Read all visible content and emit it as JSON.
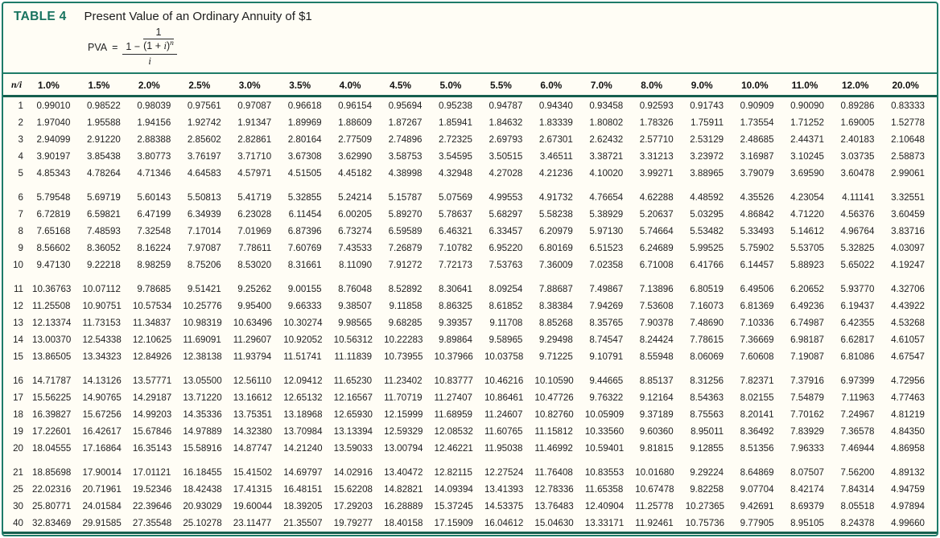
{
  "header": {
    "label": "TABLE 4",
    "title": "Present Value of an Ordinary Annuity of $1"
  },
  "formula": {
    "lhs": "PVA",
    "equals": "=",
    "one_minus": "1 −",
    "inner_numerator": "1",
    "inner_den_open": "(1 + ",
    "inner_den_var": "i",
    "inner_den_close": ")",
    "inner_den_exponent": "n",
    "outer_denominator": "i"
  },
  "colors": {
    "accent_teal": "#1E7B68",
    "rule_dark": "#155F4F",
    "background": "#FFFDF5"
  },
  "table": {
    "corner_label": "n/i",
    "columns": [
      "1.0%",
      "1.5%",
      "2.0%",
      "2.5%",
      "3.0%",
      "3.5%",
      "4.0%",
      "4.5%",
      "5.0%",
      "5.5%",
      "6.0%",
      "7.0%",
      "8.0%",
      "9.0%",
      "10.0%",
      "11.0%",
      "12.0%",
      "20.0%"
    ],
    "group_start_rows": [
      6,
      11,
      16,
      21
    ],
    "rows": [
      {
        "n": 1,
        "values": [
          "0.99010",
          "0.98522",
          "0.98039",
          "0.97561",
          "0.97087",
          "0.96618",
          "0.96154",
          "0.95694",
          "0.95238",
          "0.94787",
          "0.94340",
          "0.93458",
          "0.92593",
          "0.91743",
          "0.90909",
          "0.90090",
          "0.89286",
          "0.83333"
        ]
      },
      {
        "n": 2,
        "values": [
          "1.97040",
          "1.95588",
          "1.94156",
          "1.92742",
          "1.91347",
          "1.89969",
          "1.88609",
          "1.87267",
          "1.85941",
          "1.84632",
          "1.83339",
          "1.80802",
          "1.78326",
          "1.75911",
          "1.73554",
          "1.71252",
          "1.69005",
          "1.52778"
        ]
      },
      {
        "n": 3,
        "values": [
          "2.94099",
          "2.91220",
          "2.88388",
          "2.85602",
          "2.82861",
          "2.80164",
          "2.77509",
          "2.74896",
          "2.72325",
          "2.69793",
          "2.67301",
          "2.62432",
          "2.57710",
          "2.53129",
          "2.48685",
          "2.44371",
          "2.40183",
          "2.10648"
        ]
      },
      {
        "n": 4,
        "values": [
          "3.90197",
          "3.85438",
          "3.80773",
          "3.76197",
          "3.71710",
          "3.67308",
          "3.62990",
          "3.58753",
          "3.54595",
          "3.50515",
          "3.46511",
          "3.38721",
          "3.31213",
          "3.23972",
          "3.16987",
          "3.10245",
          "3.03735",
          "2.58873"
        ]
      },
      {
        "n": 5,
        "values": [
          "4.85343",
          "4.78264",
          "4.71346",
          "4.64583",
          "4.57971",
          "4.51505",
          "4.45182",
          "4.38998",
          "4.32948",
          "4.27028",
          "4.21236",
          "4.10020",
          "3.99271",
          "3.88965",
          "3.79079",
          "3.69590",
          "3.60478",
          "2.99061"
        ]
      },
      {
        "n": 6,
        "values": [
          "5.79548",
          "5.69719",
          "5.60143",
          "5.50813",
          "5.41719",
          "5.32855",
          "5.24214",
          "5.15787",
          "5.07569",
          "4.99553",
          "4.91732",
          "4.76654",
          "4.62288",
          "4.48592",
          "4.35526",
          "4.23054",
          "4.11141",
          "3.32551"
        ]
      },
      {
        "n": 7,
        "values": [
          "6.72819",
          "6.59821",
          "6.47199",
          "6.34939",
          "6.23028",
          "6.11454",
          "6.00205",
          "5.89270",
          "5.78637",
          "5.68297",
          "5.58238",
          "5.38929",
          "5.20637",
          "5.03295",
          "4.86842",
          "4.71220",
          "4.56376",
          "3.60459"
        ]
      },
      {
        "n": 8,
        "values": [
          "7.65168",
          "7.48593",
          "7.32548",
          "7.17014",
          "7.01969",
          "6.87396",
          "6.73274",
          "6.59589",
          "6.46321",
          "6.33457",
          "6.20979",
          "5.97130",
          "5.74664",
          "5.53482",
          "5.33493",
          "5.14612",
          "4.96764",
          "3.83716"
        ]
      },
      {
        "n": 9,
        "values": [
          "8.56602",
          "8.36052",
          "8.16224",
          "7.97087",
          "7.78611",
          "7.60769",
          "7.43533",
          "7.26879",
          "7.10782",
          "6.95220",
          "6.80169",
          "6.51523",
          "6.24689",
          "5.99525",
          "5.75902",
          "5.53705",
          "5.32825",
          "4.03097"
        ]
      },
      {
        "n": 10,
        "values": [
          "9.47130",
          "9.22218",
          "8.98259",
          "8.75206",
          "8.53020",
          "8.31661",
          "8.11090",
          "7.91272",
          "7.72173",
          "7.53763",
          "7.36009",
          "7.02358",
          "6.71008",
          "6.41766",
          "6.14457",
          "5.88923",
          "5.65022",
          "4.19247"
        ]
      },
      {
        "n": 11,
        "values": [
          "10.36763",
          "10.07112",
          "9.78685",
          "9.51421",
          "9.25262",
          "9.00155",
          "8.76048",
          "8.52892",
          "8.30641",
          "8.09254",
          "7.88687",
          "7.49867",
          "7.13896",
          "6.80519",
          "6.49506",
          "6.20652",
          "5.93770",
          "4.32706"
        ]
      },
      {
        "n": 12,
        "values": [
          "11.25508",
          "10.90751",
          "10.57534",
          "10.25776",
          "9.95400",
          "9.66333",
          "9.38507",
          "9.11858",
          "8.86325",
          "8.61852",
          "8.38384",
          "7.94269",
          "7.53608",
          "7.16073",
          "6.81369",
          "6.49236",
          "6.19437",
          "4.43922"
        ]
      },
      {
        "n": 13,
        "values": [
          "12.13374",
          "11.73153",
          "11.34837",
          "10.98319",
          "10.63496",
          "10.30274",
          "9.98565",
          "9.68285",
          "9.39357",
          "9.11708",
          "8.85268",
          "8.35765",
          "7.90378",
          "7.48690",
          "7.10336",
          "6.74987",
          "6.42355",
          "4.53268"
        ]
      },
      {
        "n": 14,
        "values": [
          "13.00370",
          "12.54338",
          "12.10625",
          "11.69091",
          "11.29607",
          "10.92052",
          "10.56312",
          "10.22283",
          "9.89864",
          "9.58965",
          "9.29498",
          "8.74547",
          "8.24424",
          "7.78615",
          "7.36669",
          "6.98187",
          "6.62817",
          "4.61057"
        ]
      },
      {
        "n": 15,
        "values": [
          "13.86505",
          "13.34323",
          "12.84926",
          "12.38138",
          "11.93794",
          "11.51741",
          "11.11839",
          "10.73955",
          "10.37966",
          "10.03758",
          "9.71225",
          "9.10791",
          "8.55948",
          "8.06069",
          "7.60608",
          "7.19087",
          "6.81086",
          "4.67547"
        ]
      },
      {
        "n": 16,
        "values": [
          "14.71787",
          "14.13126",
          "13.57771",
          "13.05500",
          "12.56110",
          "12.09412",
          "11.65230",
          "11.23402",
          "10.83777",
          "10.46216",
          "10.10590",
          "9.44665",
          "8.85137",
          "8.31256",
          "7.82371",
          "7.37916",
          "6.97399",
          "4.72956"
        ]
      },
      {
        "n": 17,
        "values": [
          "15.56225",
          "14.90765",
          "14.29187",
          "13.71220",
          "13.16612",
          "12.65132",
          "12.16567",
          "11.70719",
          "11.27407",
          "10.86461",
          "10.47726",
          "9.76322",
          "9.12164",
          "8.54363",
          "8.02155",
          "7.54879",
          "7.11963",
          "4.77463"
        ]
      },
      {
        "n": 18,
        "values": [
          "16.39827",
          "15.67256",
          "14.99203",
          "14.35336",
          "13.75351",
          "13.18968",
          "12.65930",
          "12.15999",
          "11.68959",
          "11.24607",
          "10.82760",
          "10.05909",
          "9.37189",
          "8.75563",
          "8.20141",
          "7.70162",
          "7.24967",
          "4.81219"
        ]
      },
      {
        "n": 19,
        "values": [
          "17.22601",
          "16.42617",
          "15.67846",
          "14.97889",
          "14.32380",
          "13.70984",
          "13.13394",
          "12.59329",
          "12.08532",
          "11.60765",
          "11.15812",
          "10.33560",
          "9.60360",
          "8.95011",
          "8.36492",
          "7.83929",
          "7.36578",
          "4.84350"
        ]
      },
      {
        "n": 20,
        "values": [
          "18.04555",
          "17.16864",
          "16.35143",
          "15.58916",
          "14.87747",
          "14.21240",
          "13.59033",
          "13.00794",
          "12.46221",
          "11.95038",
          "11.46992",
          "10.59401",
          "9.81815",
          "9.12855",
          "8.51356",
          "7.96333",
          "7.46944",
          "4.86958"
        ]
      },
      {
        "n": 21,
        "values": [
          "18.85698",
          "17.90014",
          "17.01121",
          "16.18455",
          "15.41502",
          "14.69797",
          "14.02916",
          "13.40472",
          "12.82115",
          "12.27524",
          "11.76408",
          "10.83553",
          "10.01680",
          "9.29224",
          "8.64869",
          "8.07507",
          "7.56200",
          "4.89132"
        ]
      },
      {
        "n": 25,
        "values": [
          "22.02316",
          "20.71961",
          "19.52346",
          "18.42438",
          "17.41315",
          "16.48151",
          "15.62208",
          "14.82821",
          "14.09394",
          "13.41393",
          "12.78336",
          "11.65358",
          "10.67478",
          "9.82258",
          "9.07704",
          "8.42174",
          "7.84314",
          "4.94759"
        ]
      },
      {
        "n": 30,
        "values": [
          "25.80771",
          "24.01584",
          "22.39646",
          "20.93029",
          "19.60044",
          "18.39205",
          "17.29203",
          "16.28889",
          "15.37245",
          "14.53375",
          "13.76483",
          "12.40904",
          "11.25778",
          "10.27365",
          "9.42691",
          "8.69379",
          "8.05518",
          "4.97894"
        ]
      },
      {
        "n": 40,
        "values": [
          "32.83469",
          "29.91585",
          "27.35548",
          "25.10278",
          "23.11477",
          "21.35507",
          "19.79277",
          "18.40158",
          "17.15909",
          "16.04612",
          "15.04630",
          "13.33171",
          "11.92461",
          "10.75736",
          "9.77905",
          "8.95105",
          "8.24378",
          "4.99660"
        ]
      }
    ]
  }
}
